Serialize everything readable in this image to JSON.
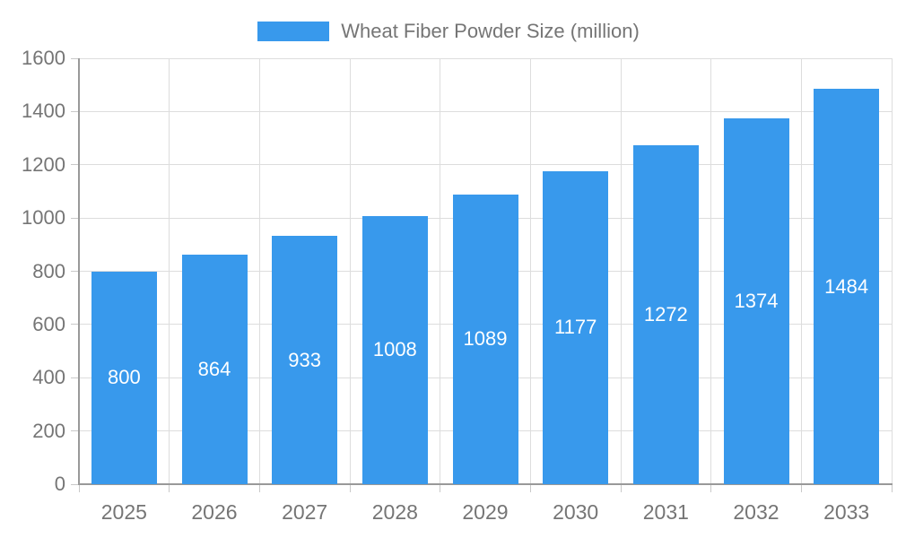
{
  "chart_data": {
    "type": "bar",
    "title": "Wheat Fiber Powder Size (million)",
    "legend": {
      "label": "Wheat Fiber Powder Size (million)",
      "position": "top"
    },
    "categories": [
      "2025",
      "2026",
      "2027",
      "2028",
      "2029",
      "2030",
      "2031",
      "2032",
      "2033"
    ],
    "series": [
      {
        "name": "Wheat Fiber Powder Size (million)",
        "values": [
          800,
          864,
          933,
          1008,
          1089,
          1177,
          1272,
          1374,
          1484
        ]
      }
    ],
    "xlabel": "",
    "ylabel": "",
    "ylim": [
      0,
      1600
    ],
    "ytick_step": 200,
    "yticks": [
      0,
      200,
      400,
      600,
      800,
      1000,
      1200,
      1400,
      1600
    ],
    "grid": "horizontal-and-vertical",
    "bar_label_position": "inside-center",
    "colors": {
      "bar": "#3899EC",
      "bar_label": "#FFFFFF",
      "axis_text": "#757575",
      "legend_text": "#757575",
      "gridline": "#DDDDDD",
      "axis_line": "#999999",
      "tick": "#C9C9C9",
      "background": "#FFFFFF"
    }
  }
}
